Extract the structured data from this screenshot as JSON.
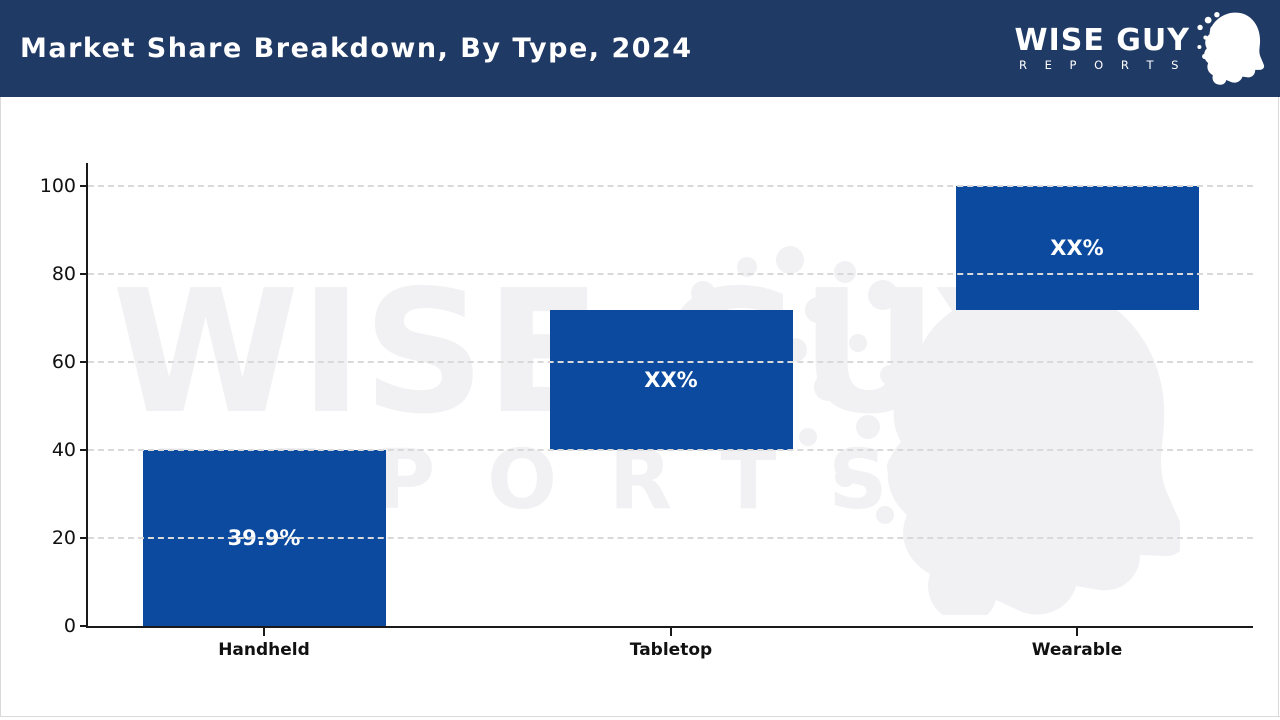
{
  "header": {
    "title": "Market Share Breakdown, By Type, 2024",
    "bg_color": "#203a66",
    "logo": {
      "wordmark": "WISE GUY",
      "tagline": "R E P O R T S"
    }
  },
  "watermark": {
    "wordmark": "WISE GUY",
    "tagline": "REPORTS"
  },
  "chart_data": {
    "type": "bar",
    "subtype": "floating-segment-breakdown (stacked-to-100%)",
    "title": "Market Share Breakdown, By Type, 2024",
    "categories": [
      "Handheld",
      "Tabletop",
      "Wearable"
    ],
    "segments": [
      {
        "category": "Handheld",
        "start": 0,
        "end": 39.9,
        "label": "39.9%"
      },
      {
        "category": "Tabletop",
        "start": 39.9,
        "end": 71.8,
        "label": "XX%"
      },
      {
        "category": "Wearable",
        "start": 71.8,
        "end": 100,
        "label": "XX%"
      }
    ],
    "values": [
      39.9,
      31.9,
      28.2
    ],
    "xlabel": "",
    "ylabel": "",
    "ylim": [
      0,
      100
    ],
    "yticks": [
      0,
      20,
      40,
      60,
      80,
      100
    ],
    "grid": {
      "horizontal": true,
      "style": "dashed",
      "color": "#d9d9d9",
      "drawn_above_bars": true
    },
    "legend": "none",
    "bar_color": "#0b4a9f",
    "bar_label_color": "#ffffff",
    "axis_color": "#1a1a1a"
  }
}
